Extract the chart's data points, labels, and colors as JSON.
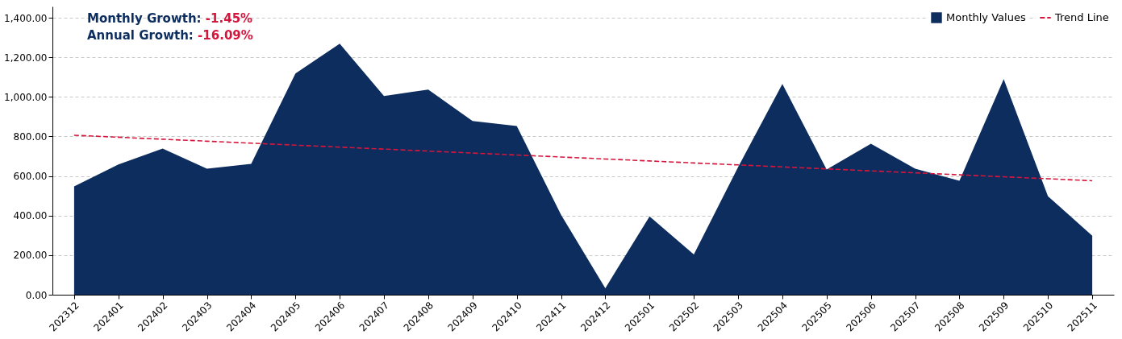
{
  "chart_data": {
    "type": "area",
    "categories": [
      "202312",
      "202401",
      "202402",
      "202403",
      "202404",
      "202405",
      "202406",
      "202407",
      "202408",
      "202409",
      "202410",
      "202411",
      "202412",
      "202501",
      "202502",
      "202503",
      "202504",
      "202505",
      "202506",
      "202507",
      "202508",
      "202509",
      "202510",
      "202511"
    ],
    "series": [
      {
        "name": "Monthly Values",
        "color": "#0d2d5e",
        "values": [
          547,
          658,
          739,
          637,
          661,
          1118,
          1269,
          1004,
          1037,
          878,
          853,
          404,
          33,
          396,
          204,
          645,
          1065,
          633,
          763,
          637,
          576,
          1090,
          498,
          298
        ]
      },
      {
        "name": "Trend Line",
        "type": "line",
        "line_style": "dashed",
        "color": "#d6153d",
        "values": [
          806,
          796,
          786,
          776,
          766,
          756,
          746,
          736,
          726,
          716,
          706,
          696,
          686,
          676,
          666,
          656,
          646,
          636,
          626,
          616,
          606,
          596,
          586,
          576
        ]
      }
    ],
    "ylim": [
      0,
      1457
    ],
    "yticks": [
      {
        "value": 0,
        "label": "0.00"
      },
      {
        "value": 200,
        "label": "200.00"
      },
      {
        "value": 400,
        "label": "400.00"
      },
      {
        "value": 600,
        "label": "600.00"
      },
      {
        "value": 800,
        "label": "800.00"
      },
      {
        "value": 1000,
        "label": "1,000.00"
      },
      {
        "value": 1200,
        "label": "1,200.00"
      },
      {
        "value": 1400,
        "label": "1,400.00"
      }
    ],
    "grid": "y",
    "legend": "top right",
    "annotations": [
      "Monthly Growth:",
      "-1.45%",
      "Annual Growth:",
      "-16.09%"
    ]
  }
}
